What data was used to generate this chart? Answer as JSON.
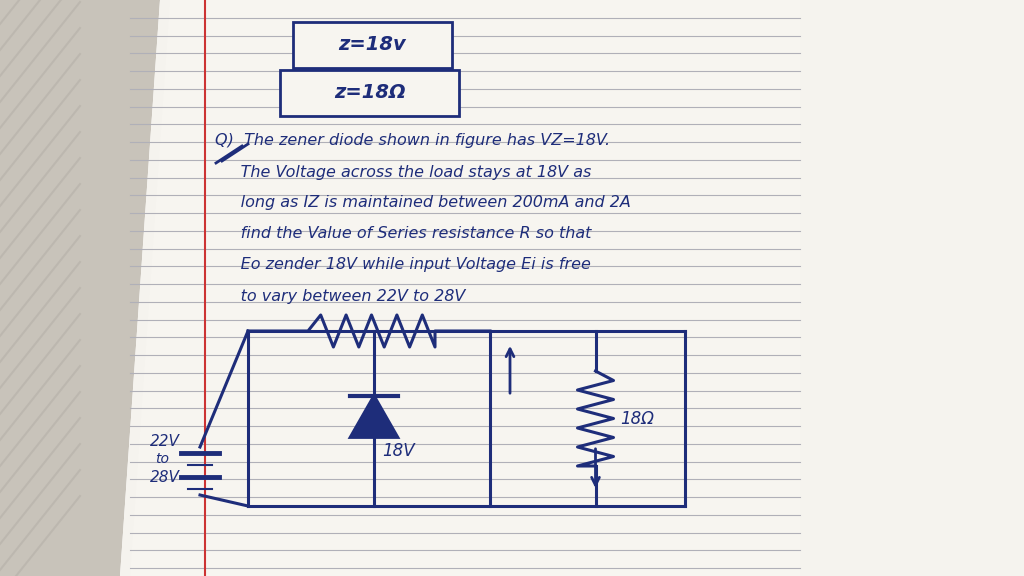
{
  "bg_notebook": "#f0eee8",
  "bg_left_paper": "#e8e5de",
  "bg_right_fabric_teal": "#7ab8c4",
  "bg_right_fabric_dark": "#2a3a4a",
  "line_color": "#1e2d7a",
  "paper_line_color": "#b0b0b8",
  "red_margin_color": "#cc3333",
  "title_box1": "z=18v",
  "title_box2": "z=18Ω",
  "question_lines": [
    "Q)  The zener diode shown in figure has VZ=18V.",
    "     The Voltage across the load stays at 18V as",
    "     long as IZ is maintained between 200mA and 2A",
    "     find the Value of Series resistance R so that",
    "     Eo zender 18V while input Voltage Ei is free",
    "     to vary between 22V to 28V"
  ],
  "circuit_zener_label": "18V",
  "circuit_load_label": "18Ω",
  "source_label": "22V\nto\n28V"
}
